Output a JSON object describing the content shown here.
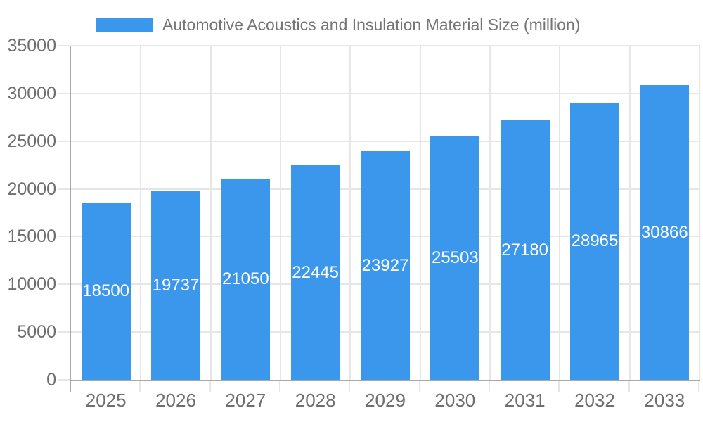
{
  "chart_data": {
    "type": "bar",
    "title": "Automotive Acoustics and Insulation Material Size (million)",
    "categories": [
      "2025",
      "2026",
      "2027",
      "2028",
      "2029",
      "2030",
      "2031",
      "2032",
      "2033"
    ],
    "values": [
      18500,
      19737,
      21050,
      22445,
      23927,
      25503,
      27180,
      28965,
      30866
    ],
    "xlabel": "",
    "ylabel": "",
    "ylim": [
      0,
      35000
    ],
    "ytick_step": 5000,
    "ytick_labels": [
      "0",
      "5000",
      "10000",
      "15000",
      "20000",
      "25000",
      "30000",
      "35000"
    ],
    "grid": true,
    "legend_position": "top",
    "value_labels_inside_bars": true
  },
  "colors": {
    "bar": "#3B97EC",
    "grid": "#E6E6E6",
    "axis": "#A8A8A8",
    "tick_text": "#6E6E6E",
    "title_text": "#757575",
    "bar_label_text": "#FFFFFF",
    "background": "#FFFFFF"
  }
}
